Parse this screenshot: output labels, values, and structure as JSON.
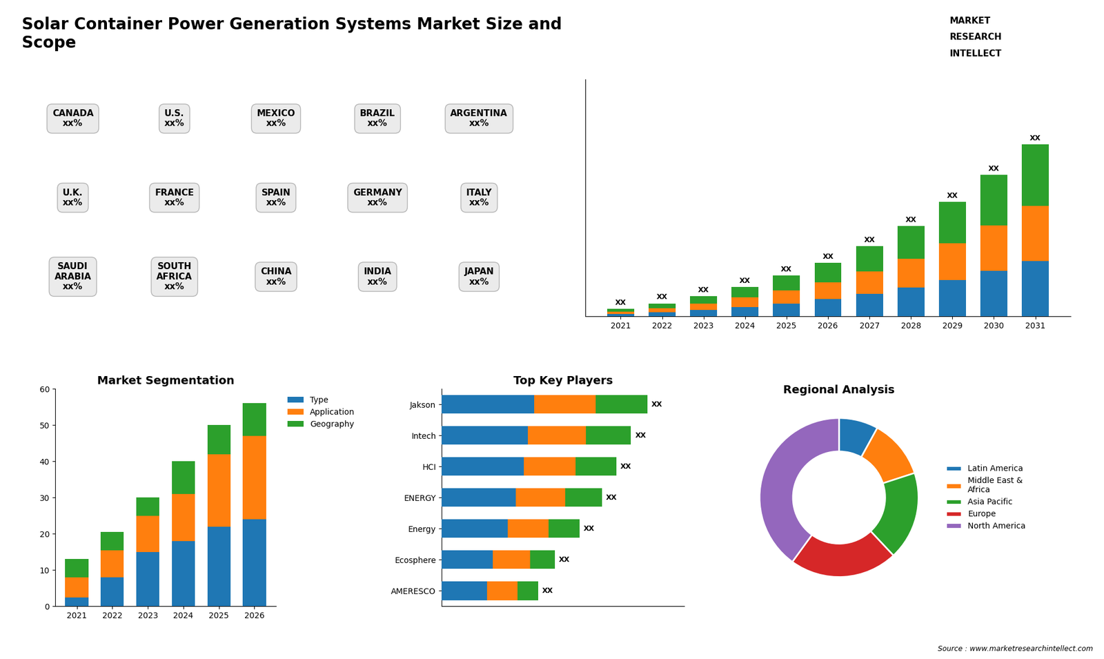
{
  "title": "Solar Container Power Generation Systems Market Size and\nScope",
  "annotations": [
    "Source : www.marketresearchintellect.com",
    "MARKET",
    "RESEARCH",
    "INTELLECT"
  ],
  "chart_data": [
    {
      "type": "map",
      "tick_labels": false,
      "annotations": [
        "CANADA\nxx%",
        "U.S.\nxx%",
        "MEXICO\nxx%",
        "BRAZIL\nxx%",
        "ARGENTINA\nxx%",
        "U.K.\nxx%",
        "FRANCE\nxx%",
        "SPAIN\nxx%",
        "GERMANY\nxx%",
        "ITALY\nxx%",
        "SAUDI\nARABIA\nxx%",
        "SOUTH\nAFRICA\nxx%",
        "CHINA\nxx%",
        "INDIA\nxx%",
        "JAPAN\nxx%"
      ]
    },
    {
      "type": "bar",
      "stacked": true,
      "tick_labels": "x",
      "categories": [
        "2021",
        "2022",
        "2023",
        "2024",
        "2025",
        "2026",
        "2027",
        "2028",
        "2029",
        "2030",
        "2031"
      ],
      "series": [
        {
          "values": [
            2.0,
            3.5,
            5.5,
            8.0,
            11.0,
            14.5,
            19.0,
            24.5,
            31.0,
            38.5,
            47.0
          ]
        },
        {
          "values": [
            2.0,
            3.5,
            5.5,
            8.0,
            11.0,
            14.5,
            19.0,
            24.5,
            31.0,
            38.5,
            47.0
          ]
        },
        {
          "values": [
            2.5,
            4.0,
            6.0,
            9.0,
            12.5,
            16.5,
            21.5,
            27.5,
            35.0,
            43.0,
            52.0
          ]
        }
      ],
      "ylim": [
        0,
        201.48
      ],
      "annotations": [
        "XX",
        "XX",
        "XX",
        "XX",
        "XX",
        "XX",
        "XX",
        "XX",
        "XX",
        "XX",
        "XX"
      ]
    },
    {
      "type": "bar",
      "stacked": true,
      "title": "Market Segmentation",
      "categories": [
        "2021",
        "2022",
        "2023",
        "2024",
        "2025",
        "2026"
      ],
      "series": [
        {
          "name": "Type",
          "values": [
            2.5,
            8.0,
            15.0,
            18.0,
            22.0,
            24.0
          ]
        },
        {
          "name": "Application",
          "values": [
            5.5,
            7.5,
            10.0,
            13.0,
            20.0,
            23.0
          ]
        },
        {
          "name": "Geography",
          "values": [
            5.0,
            5.0,
            5.0,
            9.0,
            8.0,
            9.0
          ]
        }
      ],
      "ylim": [
        0,
        60
      ],
      "yticks": [
        0,
        10,
        20,
        30,
        40,
        50,
        60
      ],
      "legend": "upper left"
    },
    {
      "type": "bar",
      "stacked": true,
      "orientation": "horizontal",
      "title": "Top Key Players",
      "tick_labels": "y",
      "categories": [
        "Jakson",
        "Intech",
        "HCI",
        "ENERGY",
        "Energy",
        "Ecosphere",
        "AMERESCO"
      ],
      "series": [
        {
          "values": [
            4.5,
            4.2,
            4.0,
            3.6,
            3.2,
            2.5,
            2.2
          ]
        },
        {
          "values": [
            3.0,
            2.8,
            2.5,
            2.4,
            2.0,
            1.8,
            1.5
          ]
        },
        {
          "values": [
            2.5,
            2.2,
            2.0,
            1.8,
            1.5,
            1.2,
            1.0
          ]
        }
      ],
      "xlim": [
        0,
        11.8
      ],
      "annotations": [
        "XX",
        "XX",
        "XX",
        "XX",
        "XX",
        "XX",
        "XX"
      ]
    },
    {
      "type": "pie",
      "title": "Regional Analysis",
      "categories": [
        "Latin America",
        "Middle East &\nAfrica",
        "Asia Pacific",
        "Europe",
        "North America"
      ],
      "values": [
        8,
        12,
        18,
        22,
        40
      ],
      "legend": "center left"
    }
  ]
}
